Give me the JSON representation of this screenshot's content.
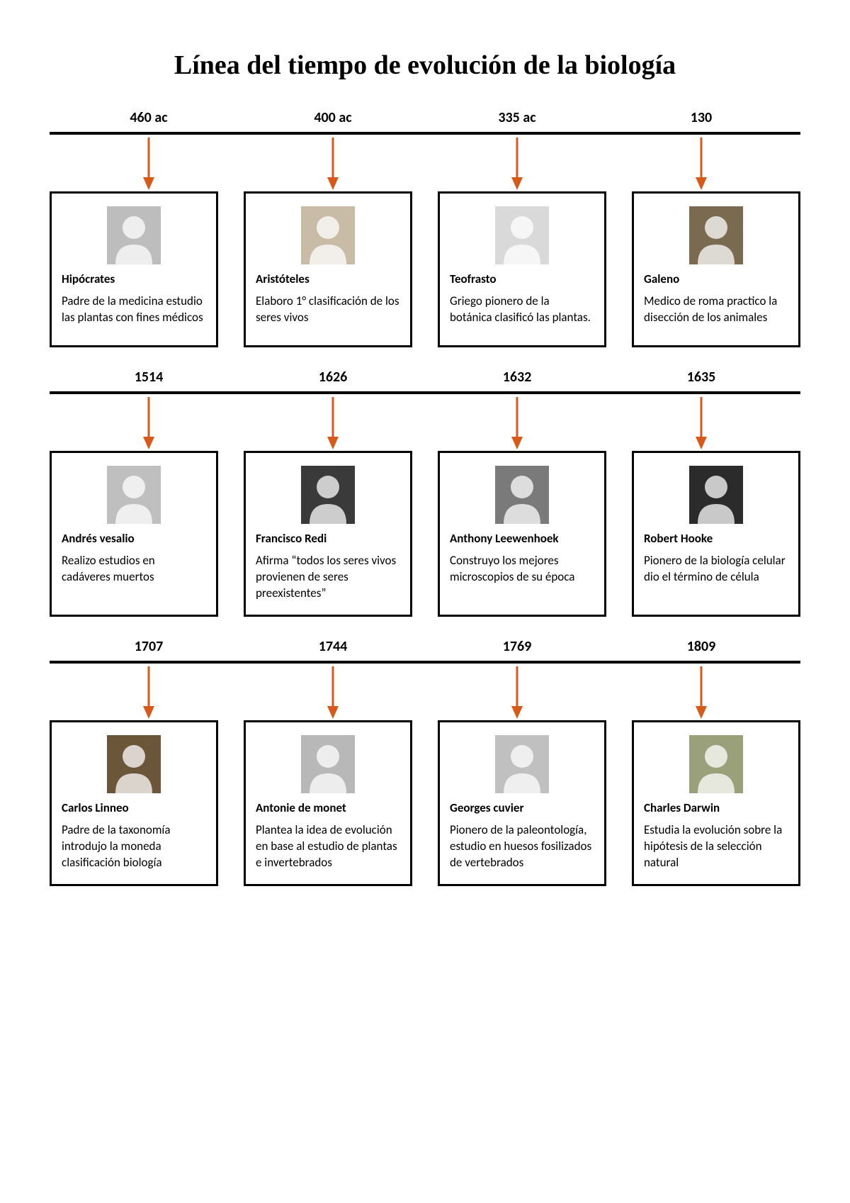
{
  "title": "Línea del tiempo de evolución de la biología",
  "arrow_color": "#d85a1a",
  "border_color": "#000000",
  "background": "#ffffff",
  "rows": [
    {
      "items": [
        {
          "date": "460 ac",
          "name": "Hipócrates",
          "desc": "Padre de la medicina estudio las plantas con fines médicos",
          "portrait_bg": "#bdbdbd"
        },
        {
          "date": "400 ac",
          "name": "Aristóteles",
          "desc": "Elaboro 1° clasificación de los seres vivos",
          "portrait_bg": "#c9bca6"
        },
        {
          "date": "335 ac",
          "name": "Teofrasto",
          "desc": "Griego pionero de la botánica clasificó las plantas.",
          "portrait_bg": "#d9d9d9"
        },
        {
          "date": "130",
          "name": "Galeno",
          "desc": "Medico de roma practico la disección de los animales",
          "portrait_bg": "#7a6a4f"
        }
      ]
    },
    {
      "items": [
        {
          "date": "1514",
          "name": "Andrés vesalio",
          "desc": "Realizo estudios en cadáveres muertos",
          "portrait_bg": "#bfbfbf"
        },
        {
          "date": "1626",
          "name": "Francisco Redi",
          "desc": "Afirma “todos los seres vivos provienen de seres preexistentes”",
          "portrait_bg": "#3a3a3a"
        },
        {
          "date": "1632",
          "name": "Anthony Leewenhoek",
          "desc": "Construyo los mejores microscopios de su época",
          "portrait_bg": "#7a7a7a"
        },
        {
          "date": "1635",
          "name": "Robert Hooke",
          "desc": "Pionero de la biología celular dio el término de célula",
          "portrait_bg": "#2b2b2b"
        }
      ]
    },
    {
      "items": [
        {
          "date": "1707",
          "name": "Carlos Linneo",
          "desc": "Padre de la taxonomía introdujo la moneda clasificación biología",
          "portrait_bg": "#6b563a"
        },
        {
          "date": "1744",
          "name": "Antonie de monet",
          "desc": "Plantea la idea de evolución en base al estudio de plantas e invertebrados",
          "portrait_bg": "#b8b8b8"
        },
        {
          "date": "1769",
          "name": "Georges cuvier",
          "desc": "Pionero de la paleontología, estudio en huesos fosilizados de vertebrados",
          "portrait_bg": "#c0c0c0"
        },
        {
          "date": "1809",
          "name": "Charles Darwin",
          "desc": "Estudia la evolución sobre la hipótesis de la selección natural",
          "portrait_bg": "#9aa07a"
        }
      ]
    }
  ]
}
